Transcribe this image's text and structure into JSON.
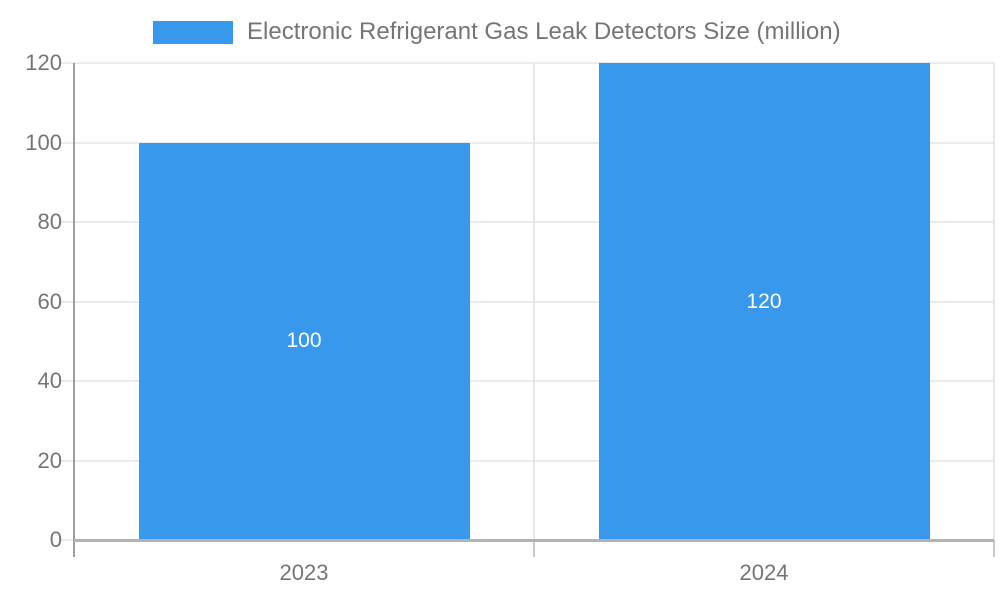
{
  "chart_data": {
    "type": "bar",
    "title": "",
    "legend": {
      "label": "Electronic Refrigerant Gas Leak Detectors Size (million)",
      "position": "top"
    },
    "categories": [
      "2023",
      "2024"
    ],
    "series": [
      {
        "name": "Electronic Refrigerant Gas Leak Detectors Size (million)",
        "values": [
          100,
          120
        ]
      }
    ],
    "value_labels": [
      "100",
      "120"
    ],
    "yticks": [
      0,
      20,
      40,
      60,
      80,
      100,
      120
    ],
    "ylim": [
      0,
      120
    ],
    "xlabel": "",
    "ylabel": "",
    "grid": true,
    "colors": {
      "bar": "#3899ec",
      "value_label_text": "#ffffff",
      "axis_text": "#757575",
      "gridline": "#ebebeb",
      "category_separator": "#e6e6e6",
      "tick_below_axis": "#c9c9c9",
      "y_axis_line": "#9e9e9e",
      "x_axis_line": "#b3b3b3",
      "background": "#ffffff"
    }
  }
}
